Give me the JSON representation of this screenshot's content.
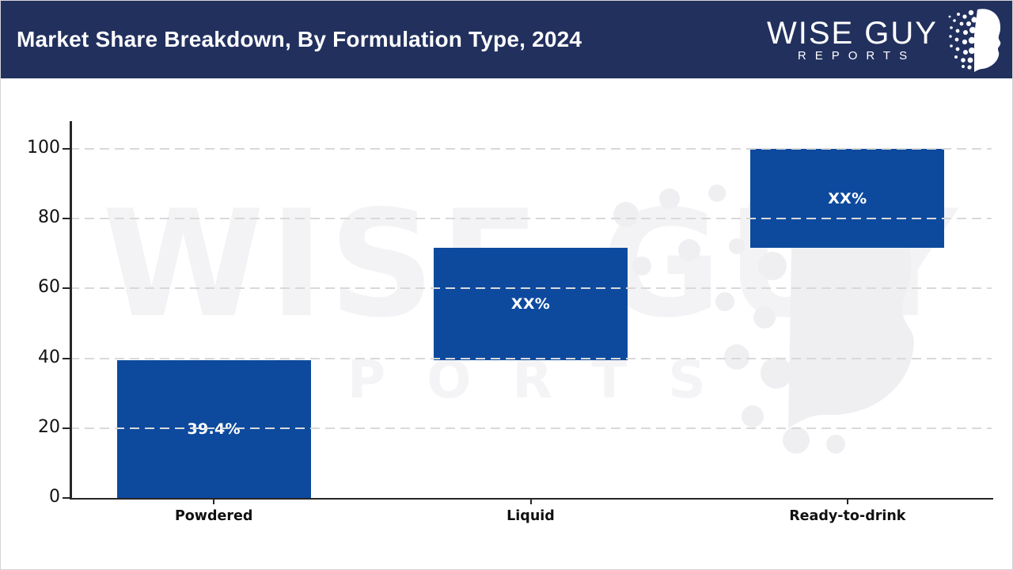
{
  "header": {
    "title": "Market Share Breakdown, By Formulation Type, 2024",
    "logo": {
      "line1": "WISE GUY",
      "line2": "REPORTS"
    }
  },
  "watermark": {
    "line1": "WISE GUY",
    "line2": "REPORTS"
  },
  "chart_data": {
    "type": "bar",
    "subtype": "waterfall",
    "title": "Market Share Breakdown, By Formulation Type, 2024",
    "categories": [
      "Powdered",
      "Liquid",
      "Ready-to-drink"
    ],
    "segments": [
      {
        "category": "Powdered",
        "start": 0,
        "end": 39.4,
        "label": "39.4%"
      },
      {
        "category": "Liquid",
        "start": 39.4,
        "end": 71.6,
        "label": "XX%"
      },
      {
        "category": "Ready-to-drink",
        "start": 71.6,
        "end": 100,
        "label": "XX%"
      }
    ],
    "yticks": [
      0,
      20,
      40,
      60,
      80,
      100
    ],
    "ylim": [
      0,
      100
    ],
    "xlabel": "",
    "ylabel": "",
    "grid": "dashed-horizontal",
    "legend": "none",
    "bar_color": "#0d4a9e",
    "bar_label_color": "#ffffff",
    "axis_color": "#262626",
    "grid_color": "#d9d9d9",
    "header_bg_color": "#22305e",
    "watermark_color": "#f3f3f5"
  }
}
